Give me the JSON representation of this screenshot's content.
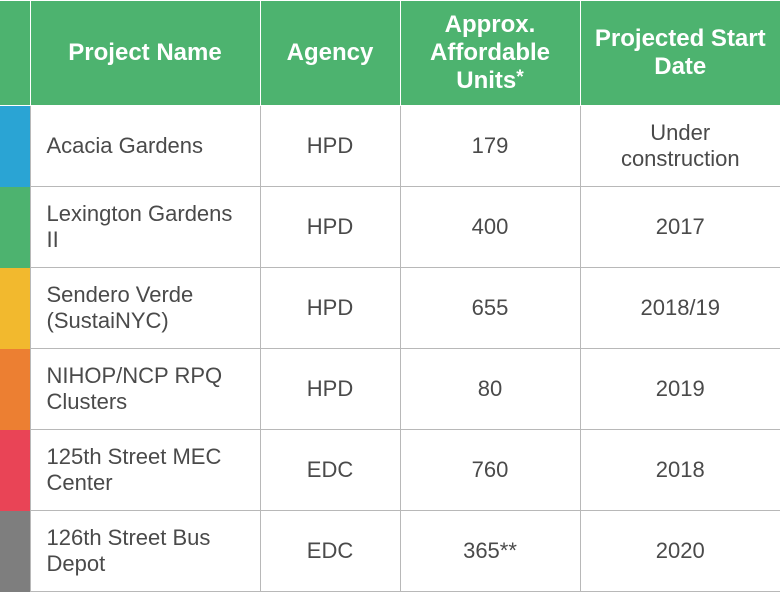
{
  "table": {
    "type": "table",
    "header_bg": "#4db36f",
    "header_text_color": "#ffffff",
    "header_fontsize": 24,
    "cell_fontsize": 22,
    "cell_text_color": "#4a4a4a",
    "border_color": "#b8b8b8",
    "row_bg": "#ffffff",
    "columns": [
      {
        "key": "project_name",
        "label": "Project Name"
      },
      {
        "key": "agency",
        "label": "Agency"
      },
      {
        "key": "units",
        "label": "Approx. Affordable Units",
        "note": "*"
      },
      {
        "key": "start_date",
        "label": "Projected Start Date"
      }
    ],
    "rows": [
      {
        "tag_color": "#2aa4d4",
        "project_name": "Acacia Gardens",
        "agency": "HPD",
        "units": "179",
        "start_date": "Under construction"
      },
      {
        "tag_color": "#4db36f",
        "project_name": "Lexington Gardens II",
        "agency": "HPD",
        "units": "400",
        "start_date": "2017"
      },
      {
        "tag_color": "#f2b92e",
        "project_name": "Sendero Verde (SustaiNYC)",
        "agency": "HPD",
        "units": "655",
        "start_date": "2018/19"
      },
      {
        "tag_color": "#ec7f32",
        "project_name": "NIHOP/NCP RPQ Clusters",
        "agency": "HPD",
        "units": "80",
        "start_date": "2019"
      },
      {
        "tag_color": "#e94456",
        "project_name": "125th Street MEC Center",
        "agency": "EDC",
        "units": "760",
        "start_date": "2018"
      },
      {
        "tag_color": "#7e7e7e",
        "project_name": "126th Street Bus Depot",
        "agency": "EDC",
        "units": "365**",
        "start_date": "2020"
      }
    ]
  }
}
